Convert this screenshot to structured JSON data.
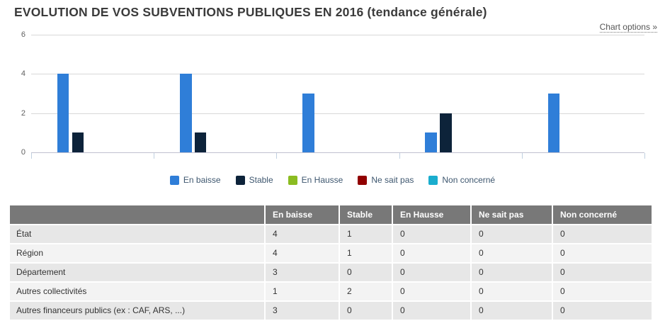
{
  "title": "EVOLUTION DE VOS SUBVENTIONS PUBLIQUES EN 2016 (tendance générale)",
  "chart_options_label": "Chart options »",
  "chart_data": {
    "type": "bar",
    "categories": [
      "État",
      "Région",
      "Département",
      "Autres collectivités",
      "Autres financeurs publics (ex : CAF, ARS, ...)"
    ],
    "series": [
      {
        "name": "En baisse",
        "color": "#2f7ed8",
        "values": [
          4,
          4,
          3,
          1,
          3
        ]
      },
      {
        "name": "Stable",
        "color": "#0d233a",
        "values": [
          1,
          1,
          0,
          2,
          0
        ]
      },
      {
        "name": "En Hausse",
        "color": "#8bbc21",
        "values": [
          0,
          0,
          0,
          0,
          0
        ]
      },
      {
        "name": "Ne sait pas",
        "color": "#910000",
        "values": [
          0,
          0,
          0,
          0,
          0
        ]
      },
      {
        "name": "Non concerné",
        "color": "#1aadce",
        "values": [
          0,
          0,
          0,
          0,
          0
        ]
      }
    ],
    "title": "EVOLUTION DE VOS SUBVENTIONS PUBLIQUES EN 2016 (tendance générale)",
    "xlabel": "",
    "ylabel": "",
    "ylim": [
      0,
      6
    ],
    "yticks": [
      0,
      2,
      4,
      6
    ],
    "grid": true,
    "legend_position": "bottom"
  },
  "table": {
    "columns": [
      "",
      "En baisse",
      "Stable",
      "En Hausse",
      "Ne sait pas",
      "Non concerné"
    ],
    "rows": [
      {
        "label": "État",
        "values": [
          4,
          1,
          0,
          0,
          0
        ]
      },
      {
        "label": "Région",
        "values": [
          4,
          1,
          0,
          0,
          0
        ]
      },
      {
        "label": "Département",
        "values": [
          3,
          0,
          0,
          0,
          0
        ]
      },
      {
        "label": "Autres collectivités",
        "values": [
          1,
          2,
          0,
          0,
          0
        ]
      },
      {
        "label": "Autres financeurs publics (ex : CAF, ARS, ...)",
        "values": [
          3,
          0,
          0,
          0,
          0
        ]
      }
    ]
  },
  "colors": {
    "grid": "#d8d8d8",
    "axis": "#c0c0d0",
    "tick": "#c0d0e0",
    "table_header_bg": "#787878",
    "row_odd": "#e7e7e7",
    "row_even": "#f3f3f3",
    "legend_text": "#3e576f"
  }
}
